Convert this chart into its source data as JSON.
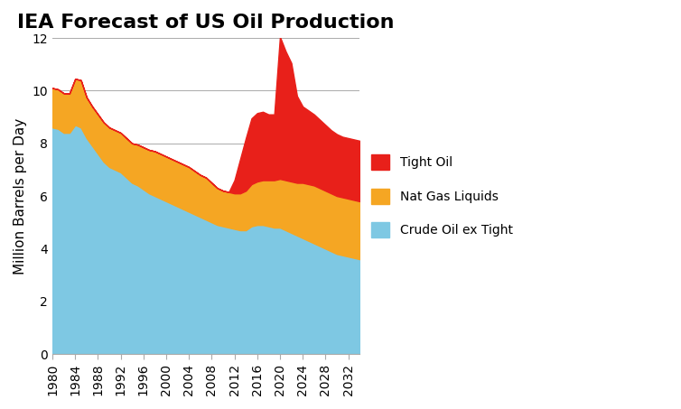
{
  "title": "IEA Forecast of US Oil Production",
  "ylabel": "Million Barrels per Day",
  "ylim": [
    0,
    12
  ],
  "yticks": [
    0,
    2,
    4,
    6,
    8,
    10,
    12
  ],
  "years": [
    1980,
    1981,
    1982,
    1983,
    1984,
    1985,
    1986,
    1987,
    1988,
    1989,
    1990,
    1991,
    1992,
    1993,
    1994,
    1995,
    1996,
    1997,
    1998,
    1999,
    2000,
    2001,
    2002,
    2003,
    2004,
    2005,
    2006,
    2007,
    2008,
    2009,
    2010,
    2011,
    2012,
    2013,
    2014,
    2015,
    2016,
    2017,
    2018,
    2019,
    2020,
    2021,
    2022,
    2023,
    2024,
    2025,
    2026,
    2027,
    2028,
    2029,
    2030,
    2031,
    2032,
    2033,
    2034
  ],
  "crude_oil": [
    8.6,
    8.55,
    8.4,
    8.4,
    8.7,
    8.6,
    8.2,
    7.9,
    7.6,
    7.3,
    7.1,
    7.0,
    6.9,
    6.7,
    6.5,
    6.4,
    6.25,
    6.1,
    6.0,
    5.9,
    5.8,
    5.7,
    5.6,
    5.5,
    5.4,
    5.3,
    5.2,
    5.1,
    5.0,
    4.9,
    4.85,
    4.8,
    4.75,
    4.7,
    4.7,
    4.85,
    4.9,
    4.9,
    4.85,
    4.8,
    4.8,
    4.7,
    4.6,
    4.5,
    4.4,
    4.3,
    4.2,
    4.1,
    4.0,
    3.9,
    3.8,
    3.75,
    3.7,
    3.65,
    3.6
  ],
  "nat_gas": [
    1.5,
    1.5,
    1.5,
    1.5,
    1.75,
    1.8,
    1.55,
    1.5,
    1.5,
    1.5,
    1.5,
    1.5,
    1.5,
    1.5,
    1.5,
    1.55,
    1.6,
    1.65,
    1.7,
    1.7,
    1.7,
    1.7,
    1.7,
    1.7,
    1.7,
    1.65,
    1.6,
    1.6,
    1.5,
    1.4,
    1.35,
    1.35,
    1.35,
    1.4,
    1.5,
    1.6,
    1.65,
    1.7,
    1.75,
    1.8,
    1.85,
    1.9,
    1.95,
    2.0,
    2.1,
    2.15,
    2.2,
    2.2,
    2.2,
    2.2,
    2.2,
    2.2,
    2.2,
    2.2,
    2.2
  ],
  "tight_oil": [
    0.0,
    0.0,
    0.0,
    0.0,
    0.0,
    0.0,
    0.0,
    0.0,
    0.0,
    0.0,
    0.0,
    0.0,
    0.0,
    0.0,
    0.0,
    0.0,
    0.0,
    0.0,
    0.0,
    0.0,
    0.0,
    0.0,
    0.0,
    0.0,
    0.0,
    0.0,
    0.0,
    0.0,
    0.0,
    0.0,
    0.0,
    0.0,
    0.5,
    1.3,
    2.0,
    2.5,
    2.6,
    2.6,
    2.5,
    2.5,
    5.4,
    4.9,
    4.5,
    3.3,
    2.9,
    2.8,
    2.7,
    2.6,
    2.5,
    2.4,
    2.35,
    2.3,
    2.3,
    2.3,
    2.3
  ],
  "xtick_labels": [
    "1980",
    "1984",
    "1988",
    "1992",
    "1996",
    "2000",
    "2004",
    "2008",
    "2012",
    "2016",
    "2020",
    "2024",
    "2028",
    "2032"
  ],
  "xtick_positions": [
    1980,
    1984,
    1988,
    1992,
    1996,
    2000,
    2004,
    2008,
    2012,
    2016,
    2020,
    2024,
    2028,
    2032
  ],
  "color_crude": "#7EC8E3",
  "color_natgas": "#F5A623",
  "color_tight": "#E8201A",
  "title_fontsize": 16,
  "ylabel_fontsize": 11,
  "tick_fontsize": 10
}
